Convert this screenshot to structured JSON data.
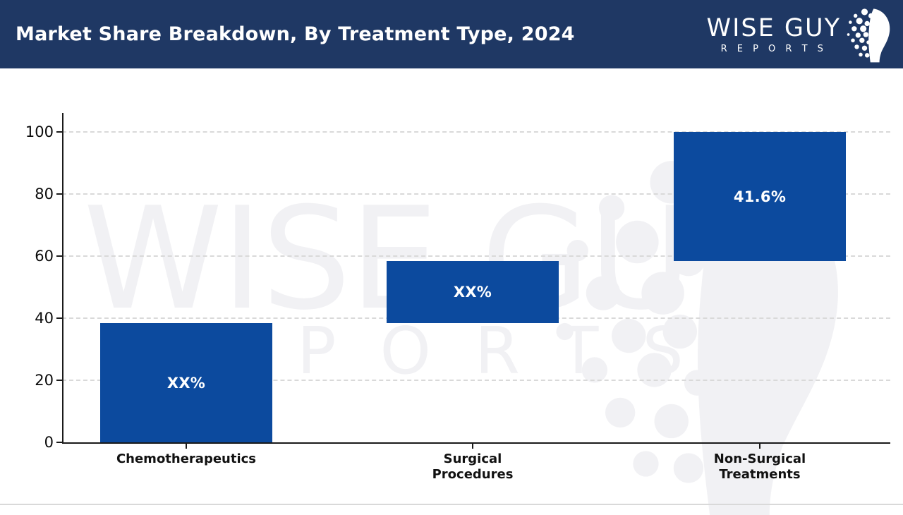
{
  "header": {
    "title": "Market Share Breakdown, By Treatment Type, 2024",
    "bg_color": "#1f3864",
    "text_color": "#ffffff",
    "logo": {
      "line1": "WISE GUY",
      "line2": "R E P O R T S"
    }
  },
  "watermark": {
    "line1": "WISE GUY",
    "line2": "REPORTS"
  },
  "chart_data": {
    "type": "bar",
    "subtype": "floating-segment-waterfall",
    "title": "Market Share Breakdown, By Treatment Type, 2024",
    "categories": [
      "Chemotherapeutics",
      "Surgical Procedures",
      "Non-Surgical Treatments"
    ],
    "category_lines": [
      [
        "Chemotherapeutics"
      ],
      [
        "Surgical",
        "Procedures"
      ],
      [
        "Non-Surgical",
        "Treatments"
      ]
    ],
    "bars": [
      {
        "category": "Chemotherapeutics",
        "start": 0,
        "end": 38.4,
        "value": 38.4,
        "label": "XX%"
      },
      {
        "category": "Surgical Procedures",
        "start": 38.4,
        "end": 58.4,
        "value": 20.0,
        "label": "XX%"
      },
      {
        "category": "Non-Surgical Treatments",
        "start": 58.4,
        "end": 100,
        "value": 41.6,
        "label": "41.6%"
      }
    ],
    "yticks": [
      0,
      20,
      40,
      60,
      80,
      100
    ],
    "ylim": [
      0,
      105
    ],
    "xlabel": "",
    "ylabel": "",
    "grid": "horizontal-dashed",
    "legend": "none",
    "bar_color": "#0c4a9e",
    "bar_label_color": "#ffffff",
    "gridline_color": "#d9d9d9",
    "axis_color": "#1a1a1a"
  }
}
